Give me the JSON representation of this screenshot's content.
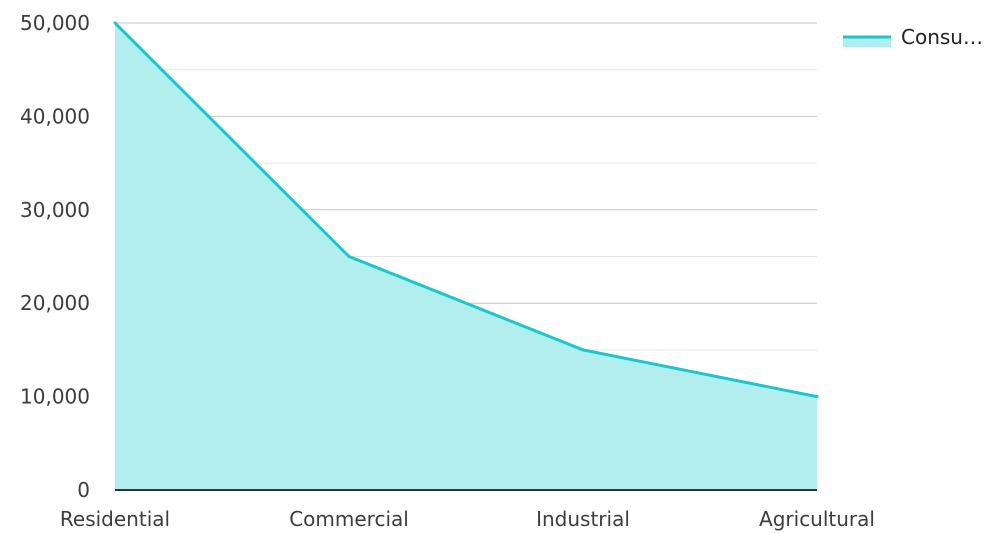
{
  "chart_data": {
    "type": "area",
    "categories": [
      "Residential",
      "Commercial",
      "Industrial",
      "Agricultural"
    ],
    "series": [
      {
        "name": "Consu…",
        "values": [
          50000,
          25000,
          15000,
          10000
        ]
      }
    ],
    "title": "",
    "xlabel": "",
    "ylabel": "",
    "ylim": [
      0,
      50000
    ],
    "yticks": [
      "0",
      "10,000",
      "20,000",
      "30,000",
      "40,000",
      "50,000"
    ],
    "ytick_values": [
      0,
      10000,
      20000,
      30000,
      40000,
      50000
    ],
    "minor_gridlines": true,
    "legend_position": "top-right",
    "colors": {
      "line": "#17c8cc",
      "fill": "#b2eeee",
      "grid_major": "#c4c4c4",
      "grid_minor": "#e6e6e6",
      "axis": "#333333"
    }
  }
}
